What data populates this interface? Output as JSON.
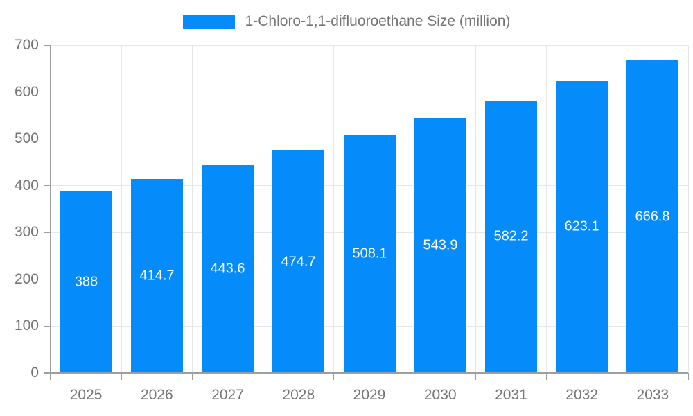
{
  "legend": {
    "label": "1-Chloro-1,1-difluoroethane Size (million)"
  },
  "colors": {
    "bar": "#058cfa",
    "grid": "#e6e6e6",
    "axis_line": "#9e9e9e",
    "axis_text": "#757575",
    "value_label": "#ffffff",
    "background": "#ffffff"
  },
  "chart_data": {
    "type": "bar",
    "title": "1-Chloro-1,1-difluoroethane Size (million)",
    "categories": [
      "2025",
      "2026",
      "2027",
      "2028",
      "2029",
      "2030",
      "2031",
      "2032",
      "2033"
    ],
    "values": [
      388,
      414.7,
      443.6,
      474.7,
      508.1,
      543.9,
      582.2,
      623.1,
      666.8
    ],
    "value_labels": [
      "388",
      "414.7",
      "443.6",
      "474.7",
      "508.1",
      "543.9",
      "582.2",
      "623.1",
      "666.8"
    ],
    "xlabel": "",
    "ylabel": "",
    "ylim": [
      0,
      700
    ],
    "ytick_interval": 100,
    "ytick_labels": [
      "0",
      "100",
      "200",
      "300",
      "400",
      "500",
      "600",
      "700"
    ],
    "grid": true,
    "legend_position": "top-center",
    "value_label_position": "inside-center"
  }
}
